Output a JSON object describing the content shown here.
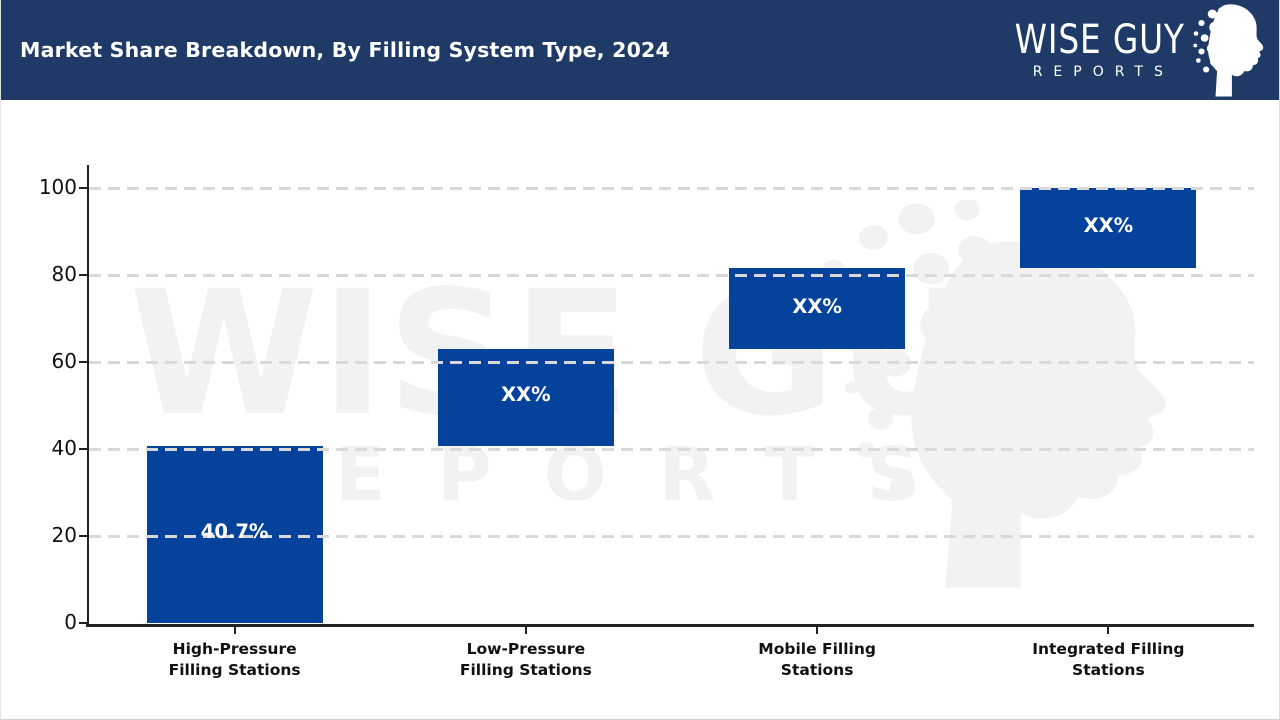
{
  "header": {
    "title": "Market Share Breakdown, By Filling System Type, 2024",
    "bg_color": "#1f3a66",
    "logo": {
      "line1": "WISE GUY",
      "line2": "REPORTS"
    }
  },
  "watermark": {
    "line1": "WISE GUY",
    "line2": "REPORTS"
  },
  "chart_data": {
    "type": "bar",
    "subtype": "waterfall",
    "title": "Market Share Breakdown, By Filling System Type, 2024",
    "categories": [
      "High-Pressure Filling Stations",
      "Low-Pressure Filling Stations",
      "Mobile Filling Stations",
      "Integrated Filling Stations"
    ],
    "category_label_lines": [
      [
        "High-Pressure",
        "Filling Stations"
      ],
      [
        "Low-Pressure",
        "Filling Stations"
      ],
      [
        "Mobile Filling",
        "Stations"
      ],
      [
        "Integrated Filling",
        "Stations"
      ]
    ],
    "segments": [
      {
        "category": "High-Pressure Filling Stations",
        "start": 0,
        "end": 40.7,
        "label": "40.7%"
      },
      {
        "category": "Low-Pressure Filling Stations",
        "start": 40.7,
        "end": 63,
        "label": "XX%"
      },
      {
        "category": "Mobile Filling Stations",
        "start": 63,
        "end": 81.5,
        "label": "XX%"
      },
      {
        "category": "Integrated Filling Stations",
        "start": 81.5,
        "end": 100,
        "label": "XX%"
      }
    ],
    "xlabel": "",
    "ylabel": "",
    "ylim": [
      0,
      100
    ],
    "yticks": [
      0,
      20,
      40,
      60,
      80,
      100
    ],
    "grid": "horizontal-dashed, drawn above bars",
    "legend": "none",
    "bar_color": "#05429b",
    "bar_label_color": "#ffffff",
    "grid_color": "#d9d9d9",
    "axis_color": "#222222"
  }
}
